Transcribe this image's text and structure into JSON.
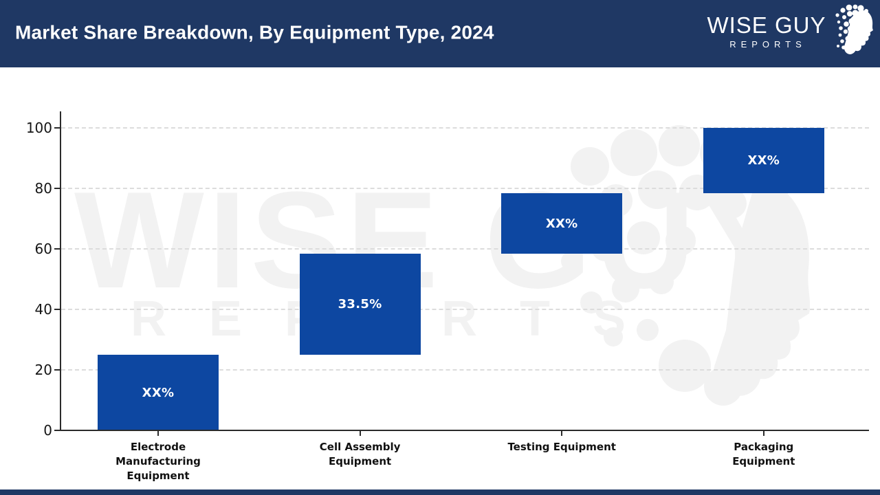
{
  "header": {
    "title": "Market Share Breakdown, By Equipment Type, 2024",
    "logo": {
      "line1": "WISE GUY",
      "line2": "REPORTS"
    }
  },
  "watermark": {
    "line1": "WISE GUY",
    "line2": "REPORTS"
  },
  "colors": {
    "header_bg": "#1f3864",
    "footer_bg": "#1f3864",
    "bar": "#0d47a1",
    "bar_label": "#ffffff",
    "grid": "#dcdcdc",
    "axis": "#2b2b2b",
    "watermark": "#f2f2f2"
  },
  "chart_data": {
    "type": "bar",
    "subtype": "waterfall",
    "title": "Market Share Breakdown, By Equipment Type, 2024",
    "xlabel": "",
    "ylabel": "",
    "ylim": [
      0,
      100
    ],
    "yticks": [
      0,
      20,
      40,
      60,
      80,
      100
    ],
    "grid": true,
    "legend": false,
    "categories": [
      "Electrode Manufacturing Equipment",
      "Cell Assembly Equipment",
      "Testing Equipment",
      "Packaging Equipment"
    ],
    "segments": [
      {
        "category": "Electrode Manufacturing Equipment",
        "category_lines": [
          "Electrode",
          "Manufacturing",
          "Equipment"
        ],
        "start": 0,
        "end": 25,
        "value_label": "XX%"
      },
      {
        "category": "Cell Assembly Equipment",
        "category_lines": [
          "Cell Assembly",
          "Equipment"
        ],
        "start": 25,
        "end": 58.5,
        "value_label": "33.5%"
      },
      {
        "category": "Testing Equipment",
        "category_lines": [
          "Testing Equipment"
        ],
        "start": 58.5,
        "end": 78.3,
        "value_label": "XX%"
      },
      {
        "category": "Packaging Equipment",
        "category_lines": [
          "Packaging",
          "Equipment"
        ],
        "start": 78.3,
        "end": 100,
        "value_label": "XX%"
      }
    ]
  }
}
